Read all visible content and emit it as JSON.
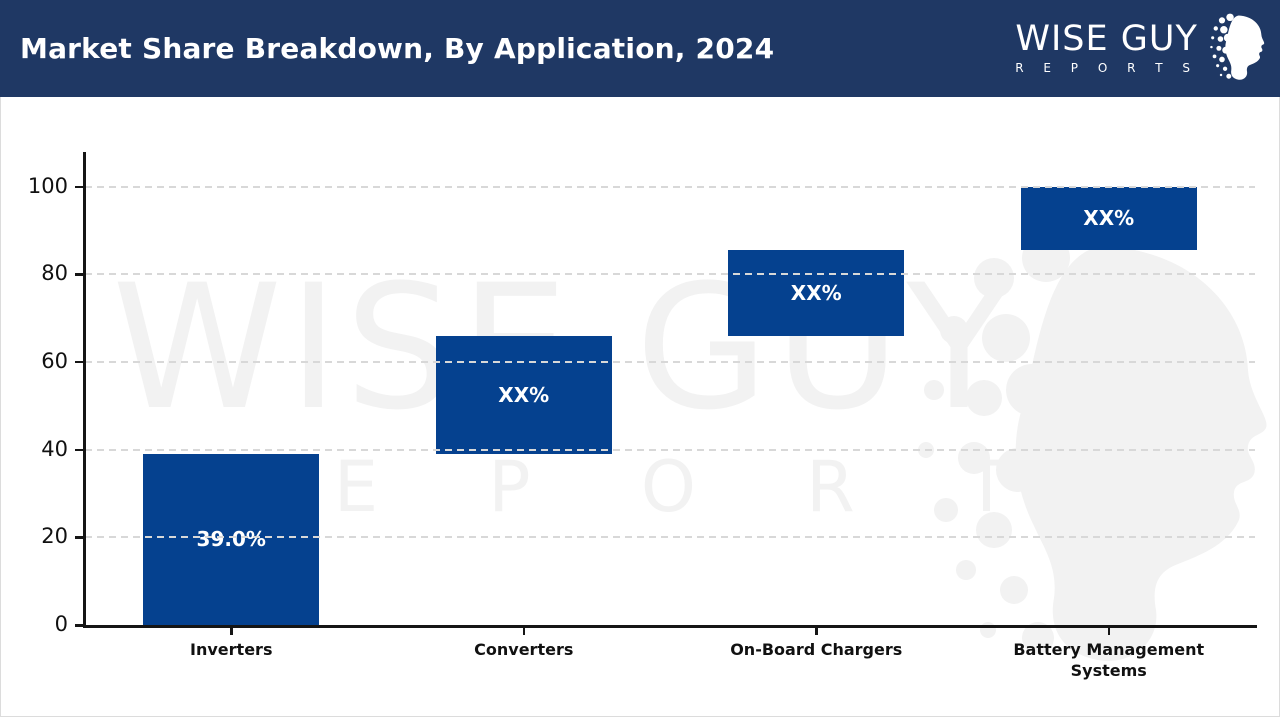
{
  "header": {
    "title": "Market Share Breakdown, By Application, 2024",
    "logo": {
      "line1": "WISE GUY",
      "line2": "R E P O R T S"
    }
  },
  "watermark": {
    "line1": "WISE GUY",
    "line2": "R E P O R T S"
  },
  "chart_data": {
    "type": "bar",
    "subtype": "waterfall",
    "title": "Market Share Breakdown, By Application, 2024",
    "xlabel": "",
    "ylabel": "",
    "categories": [
      "Inverters",
      "Converters",
      "On-Board Chargers",
      "Battery Management Systems"
    ],
    "series": [
      {
        "name": "Market Share (%)",
        "segments": [
          {
            "category": "Inverters",
            "start": 0,
            "end": 39,
            "label": "39.0%"
          },
          {
            "category": "Converters",
            "start": 39,
            "end": 66,
            "label": "XX%"
          },
          {
            "category": "On-Board Chargers",
            "start": 66,
            "end": 85.5,
            "label": "XX%"
          },
          {
            "category": "Battery Management Systems",
            "start": 85.5,
            "end": 100,
            "label": "XX%"
          }
        ]
      }
    ],
    "ylim": [
      0,
      100
    ],
    "yticks": [
      0,
      20,
      40,
      60,
      80,
      100
    ],
    "grid": "horizontal-dashed-over-bars",
    "legend": "none"
  },
  "colors": {
    "header_bg": "#1f3864",
    "bar": "#05418f",
    "bar_label": "#ffffff",
    "grid": "#d8d8d8",
    "axis": "#151515",
    "watermark": "#f2f2f2"
  }
}
